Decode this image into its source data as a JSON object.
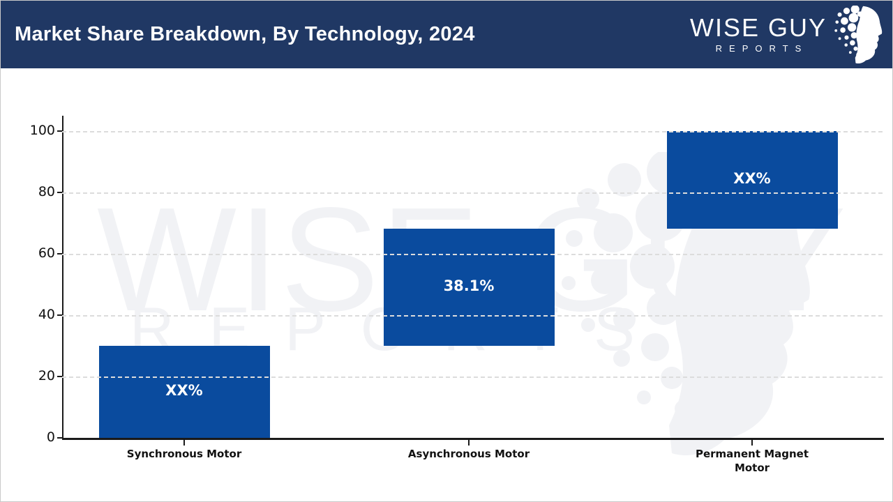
{
  "header": {
    "title": "Market Share Breakdown, By Technology, 2024",
    "bg_color": "#203864",
    "logo": {
      "line1": "WISE GUY",
      "line2": "REPORTS"
    }
  },
  "watermark": {
    "line1": "WISE GUY",
    "line2": "REPORTS"
  },
  "chart_data": {
    "type": "bar",
    "subtype": "waterfall",
    "title": "Market Share Breakdown, By Technology, 2024",
    "categories": [
      "Synchronous Motor",
      "Asynchronous Motor",
      "Permanent Magnet Motor"
    ],
    "series": [
      {
        "name": "Market Share (%)",
        "segments": [
          {
            "category": "Synchronous Motor",
            "start": 0,
            "end": 30,
            "label": "XX%"
          },
          {
            "category": "Asynchronous Motor",
            "start": 30,
            "end": 68.1,
            "label": "38.1%"
          },
          {
            "category": "Permanent Magnet Motor",
            "start": 68.1,
            "end": 100,
            "label": "XX%"
          }
        ]
      }
    ],
    "xlabel": "",
    "ylabel": "",
    "ylim": [
      0,
      100
    ],
    "yticks": [
      0,
      20,
      40,
      60,
      80,
      100
    ],
    "grid": "horizontal-dashed-above-bars",
    "legend": "none",
    "bar_color": "#0a4b9e",
    "bar_label_color": "#ffffff",
    "grid_color": "#dcdcdc",
    "axis_color": "#1a1a1a"
  }
}
